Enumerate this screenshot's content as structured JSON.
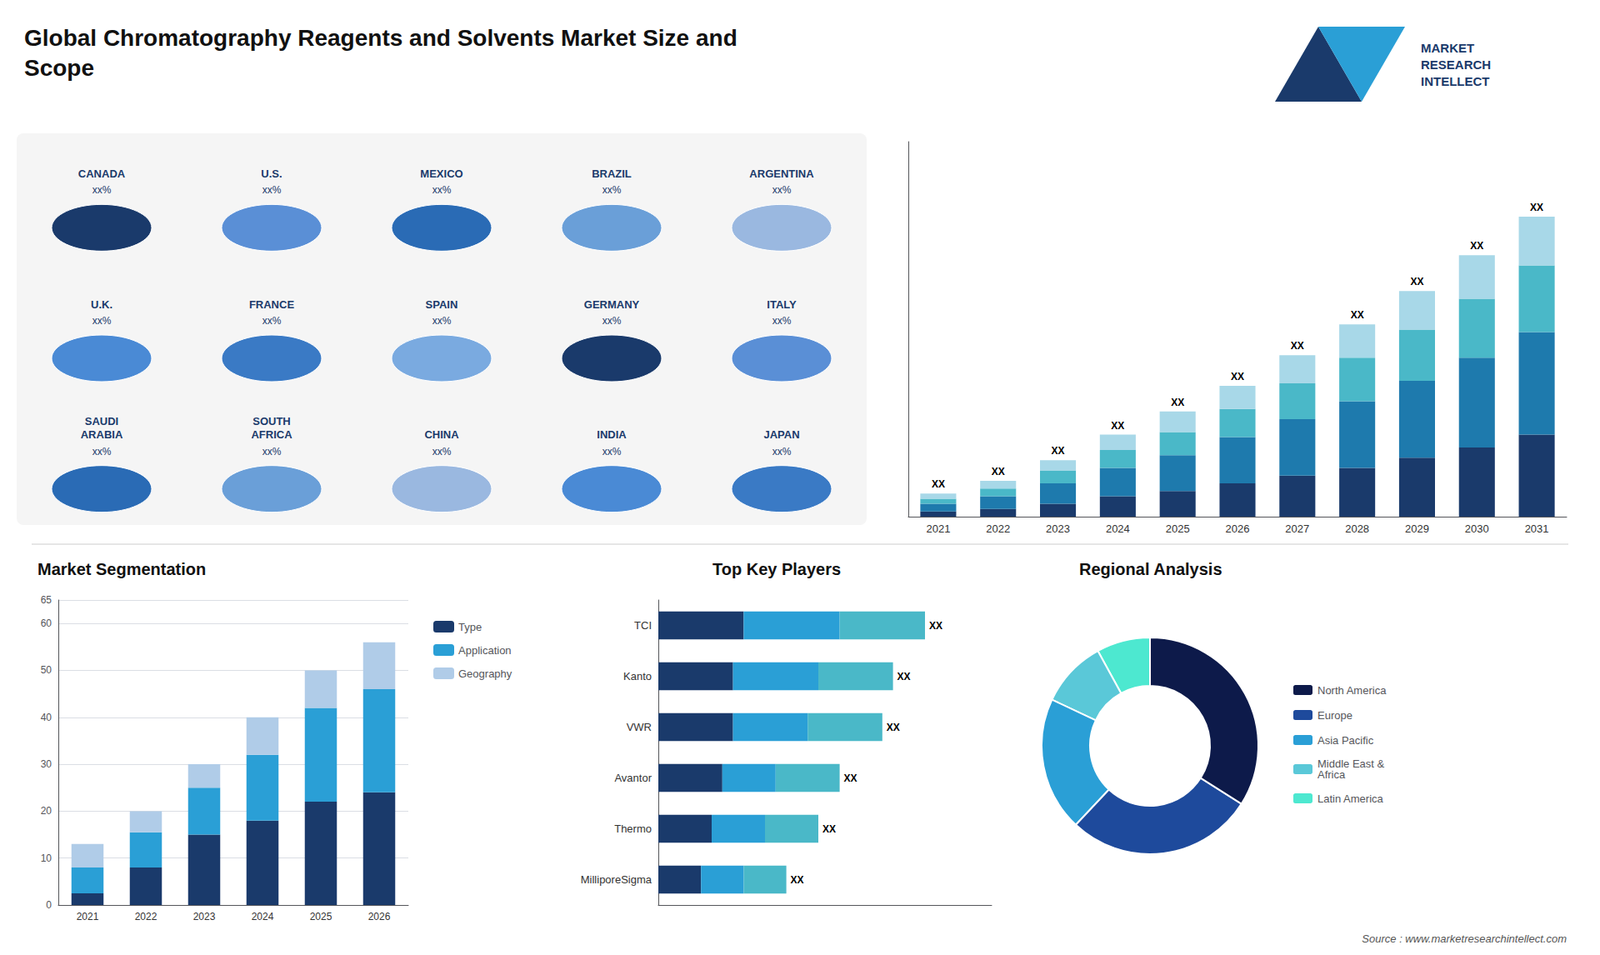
{
  "chart_data": [
    {
      "type": "bar",
      "title": "Global Chromatography Reagents and Solvents Market Size and\nScope",
      "categories": [
        "2021",
        "2022",
        "2023",
        "2024",
        "2025",
        "2026",
        "2027",
        "2028",
        "2029",
        "2030",
        "2031"
      ],
      "stacked": true,
      "series": [
        {
          "color": "#1a3a6b",
          "values": [
            2,
            3,
            5,
            8,
            10,
            13,
            16,
            19,
            23,
            27,
            32
          ]
        },
        {
          "color": "#1e7aad",
          "values": [
            3,
            5,
            8,
            11,
            14,
            18,
            22,
            26,
            30,
            35,
            40
          ]
        },
        {
          "color": "#4ab8c8",
          "values": [
            2,
            3,
            5,
            7,
            9,
            11,
            14,
            17,
            20,
            23,
            26
          ]
        },
        {
          "color": "#a8d8e8",
          "values": [
            2,
            3,
            4,
            6,
            8,
            9,
            11,
            13,
            15,
            17,
            19
          ]
        }
      ],
      "ylim": [
        0,
        146.25
      ],
      "grid": false,
      "tick_labels": "x",
      "annotations": [
        {
          "x": "2021",
          "text": "XX"
        },
        {
          "x": "2022",
          "text": "XX"
        },
        {
          "x": "2023",
          "text": "XX"
        },
        {
          "x": "2024",
          "text": "XX"
        },
        {
          "x": "2025",
          "text": "XX"
        },
        {
          "x": "2026",
          "text": "XX"
        },
        {
          "x": "2027",
          "text": "XX"
        },
        {
          "x": "2028",
          "text": "XX"
        },
        {
          "x": "2029",
          "text": "XX"
        },
        {
          "x": "2030",
          "text": "XX"
        },
        {
          "x": "2031",
          "text": "XX"
        }
      ]
    },
    {
      "type": "map",
      "annotations": [
        {
          "text": "CANADA",
          "label": "xx%"
        },
        {
          "text": "U.S.",
          "label": "xx%"
        },
        {
          "text": "MEXICO",
          "label": "xx%"
        },
        {
          "text": "BRAZIL",
          "label": "xx%"
        },
        {
          "text": "ARGENTINA",
          "label": "xx%"
        },
        {
          "text": "U.K.",
          "label": "xx%"
        },
        {
          "text": "FRANCE",
          "label": "xx%"
        },
        {
          "text": "SPAIN",
          "label": "xx%"
        },
        {
          "text": "GERMANY",
          "label": "xx%"
        },
        {
          "text": "ITALY",
          "label": "xx%"
        },
        {
          "text": "SAUDI\nARABIA",
          "label": "xx%"
        },
        {
          "text": "SOUTH\nAFRICA",
          "label": "xx%"
        },
        {
          "text": "CHINA",
          "label": "xx%"
        },
        {
          "text": "INDIA",
          "label": "xx%"
        },
        {
          "text": "JAPAN",
          "label": "xx%"
        }
      ]
    },
    {
      "type": "bar",
      "title": "Market Segmentation",
      "categories": [
        "2021",
        "2022",
        "2023",
        "2024",
        "2025",
        "2026"
      ],
      "stacked": true,
      "series": [
        {
          "name": "Type",
          "color": "#1a3a6b",
          "values": [
            2.5,
            8,
            15,
            18,
            22,
            24
          ]
        },
        {
          "name": "Application",
          "color": "#2a9fd6",
          "values": [
            5.5,
            7.5,
            10,
            14,
            20,
            22
          ]
        },
        {
          "name": "Geography",
          "color": "#b0cce8",
          "values": [
            5,
            4.5,
            5,
            8,
            8,
            10
          ]
        }
      ],
      "ylim": [
        0,
        65
      ],
      "yticks": [
        0,
        10,
        20,
        30,
        40,
        50,
        60
      ],
      "grid": true,
      "legend": "right"
    },
    {
      "type": "bar",
      "orientation": "horizontal",
      "title": "Top Key Players",
      "categories": [
        "TCI",
        "Kanto",
        "VWR",
        "Avantor",
        "Thermo",
        "MilliporeSigma"
      ],
      "stacked": true,
      "series": [
        {
          "color": "#1a3a6b",
          "values": [
            8,
            7,
            7,
            6,
            5,
            4
          ]
        },
        {
          "color": "#2a9fd6",
          "values": [
            9,
            8,
            7,
            5,
            5,
            4
          ]
        },
        {
          "color": "#4ab8c8",
          "values": [
            8,
            7,
            7,
            6,
            5,
            4
          ]
        }
      ],
      "xlim": [
        0,
        31.25
      ],
      "grid": false,
      "tick_labels": "y",
      "annotations": [
        {
          "y": "TCI",
          "text": "XX"
        },
        {
          "y": "Kanto",
          "text": "XX"
        },
        {
          "y": "VWR",
          "text": "XX"
        },
        {
          "y": "Avantor",
          "text": "XX"
        },
        {
          "y": "Thermo",
          "text": "XX"
        },
        {
          "y": "MilliporeSigma",
          "text": "XX"
        }
      ]
    },
    {
      "type": "pie",
      "title": "Regional Analysis",
      "categories": [
        "Latin America",
        "Middle East &\nAfrica",
        "Asia Pacific",
        "Europe",
        "North America"
      ],
      "values": [
        8,
        10,
        20,
        28,
        34
      ],
      "colors": [
        "#4de8d0",
        "#5ac8d8",
        "#2a9fd6",
        "#1e4a9c",
        "#0d1a4a"
      ],
      "legend": "right"
    },
    {
      "type": "text",
      "annotations": [
        {
          "text": "MARKET\nRESEARCH\nINTELLECT"
        },
        {
          "text": "Source : www.marketresearchintellect.com"
        }
      ]
    }
  ]
}
